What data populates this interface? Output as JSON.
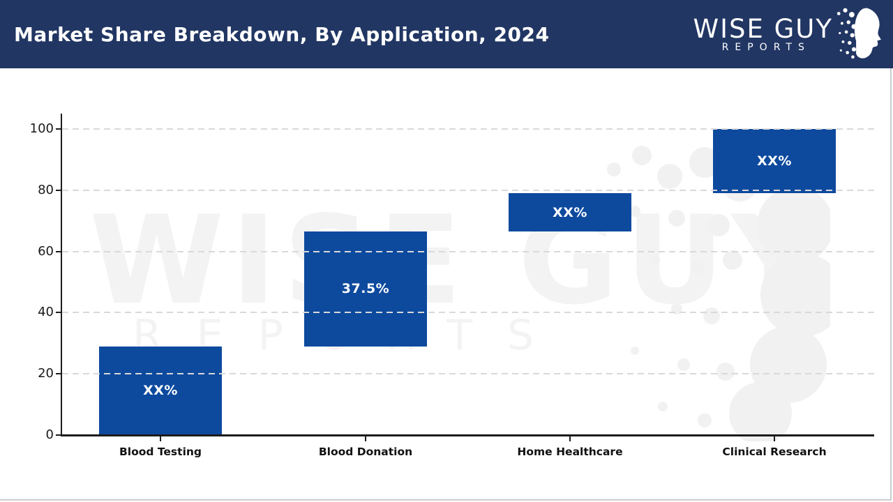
{
  "header": {
    "title": "Market Share Breakdown, By Application, 2024",
    "logo": {
      "line1": "WISE GUY",
      "line2": "REPORTS"
    }
  },
  "watermark": {
    "line1": "WISE GUY",
    "line2": "REPORTS"
  },
  "colors": {
    "header_bg": "#213663",
    "bar": "#0d4a9e",
    "grid": "#d9d9d9",
    "axis": "#1c1c1c",
    "bar_label_text": "#ffffff",
    "watermark": "#f3f3f3",
    "frame_border": "#cccccc"
  },
  "chart_data": {
    "type": "bar",
    "subtype": "waterfall",
    "title": "Market Share Breakdown, By Application, 2024",
    "categories": [
      "Blood Testing",
      "Blood Donation",
      "Home Healthcare",
      "Clinical Research"
    ],
    "series": [
      {
        "name": "Market Share %",
        "starts": [
          0,
          29,
          66.5,
          79
        ],
        "values": [
          29,
          37.5,
          12.5,
          21
        ],
        "ends": [
          29,
          66.5,
          79,
          100
        ]
      }
    ],
    "bar_labels": [
      "XX%",
      "37.5%",
      "XX%",
      "XX%"
    ],
    "xlabel": "",
    "ylabel": "",
    "ylim": [
      0,
      100
    ],
    "yticks": [
      0,
      20,
      40,
      60,
      80,
      100
    ],
    "legend": "none",
    "grid": "horizontal-dashed",
    "gridlines_above_bars": true
  }
}
